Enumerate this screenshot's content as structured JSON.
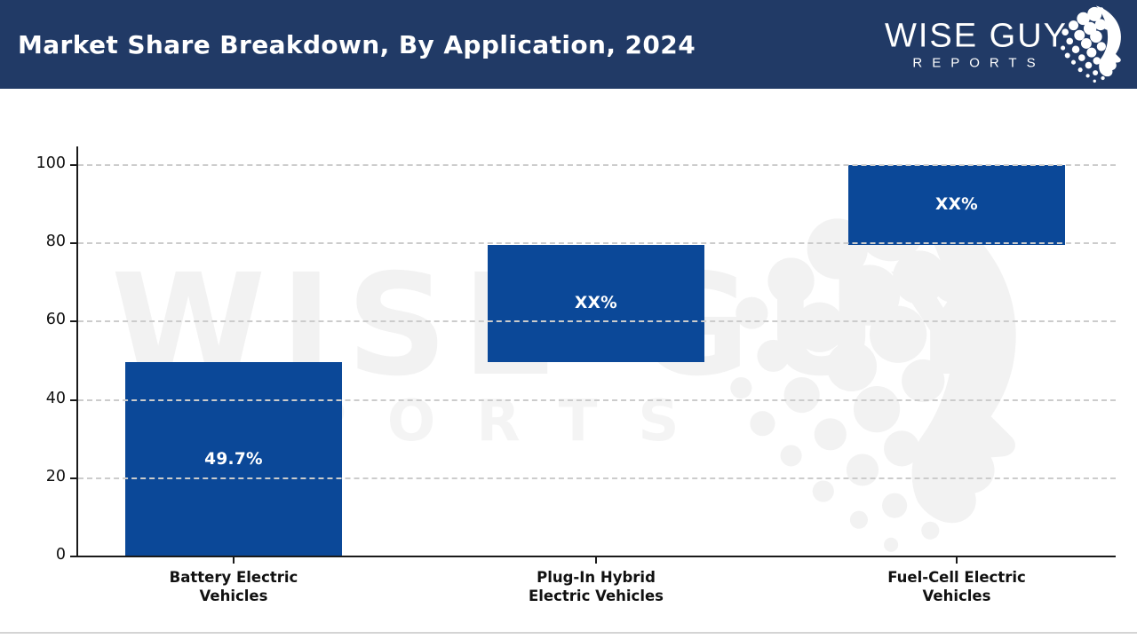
{
  "header": {
    "title": "Market Share Breakdown, By Application, 2024",
    "bg_color": "#213a66",
    "logo": {
      "line1": "WISE GUY",
      "line2": "REPORTS"
    }
  },
  "watermark": {
    "line1": "WISE GUY",
    "line2": "REPORTS"
  },
  "chart_data": {
    "type": "bar",
    "subtype": "floating-waterfall",
    "title": "Market Share Breakdown, By Application, 2024",
    "categories": [
      "Battery Electric\nVehicles",
      "Plug-In Hybrid\nElectric Vehicles",
      "Fuel-Cell Electric\nVehicles"
    ],
    "bars": [
      {
        "category": "Battery Electric Vehicles",
        "from": 0,
        "to": 49.7,
        "label": "49.7%"
      },
      {
        "category": "Plug-In Hybrid Electric Vehicles",
        "from": 49.7,
        "to": 79.7,
        "label": "XX%"
      },
      {
        "category": "Fuel-Cell Electric Vehicles",
        "from": 79.7,
        "to": 100,
        "label": "XX%"
      }
    ],
    "xlabel": "",
    "ylabel": "",
    "ylim": [
      0,
      100
    ],
    "yticks": [
      0,
      20,
      40,
      60,
      80,
      100
    ],
    "grid": "horizontal-dashed",
    "legend": "none",
    "bar_color": "#0b4898",
    "bar_label_color": "#ffffff",
    "grid_color": "#cccccc",
    "axis_color": "#1a1a1a"
  }
}
